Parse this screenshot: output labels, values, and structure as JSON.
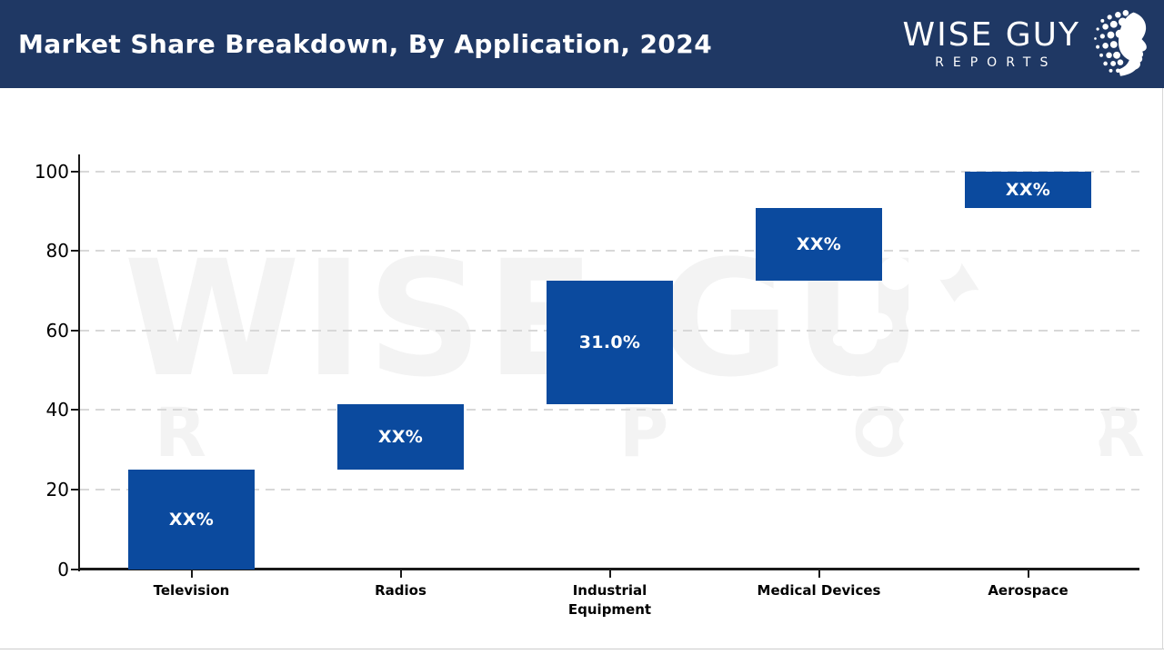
{
  "header": {
    "title": "Market Share Breakdown, By Application, 2024",
    "logo": {
      "title": "WISE GUY",
      "subtitle": "REPORTS",
      "icon": "wiseguy-face-icon"
    }
  },
  "watermark": {
    "line1": "WISE GUY",
    "line2": "R E P O R T S"
  },
  "colors": {
    "header_bg": "#1f3864",
    "bar": "#0b4a9e",
    "bar_label": "#ffffff",
    "axis": "#1a1a1a",
    "grid": "#d8d8d8",
    "watermark": "#f3f3f3"
  },
  "chart_data": {
    "type": "bar",
    "subtype": "waterfall",
    "title": "Market Share Breakdown, By Application, 2024",
    "xlabel": "",
    "ylabel": "",
    "ylim": [
      0,
      100
    ],
    "yticks": [
      0,
      20,
      40,
      60,
      80,
      100
    ],
    "grid": "horizontal-dashed",
    "legend": null,
    "categories": [
      "Television",
      "Radios",
      "Industrial\nEquipment",
      "Medical Devices",
      "Aerospace"
    ],
    "segments": [
      {
        "category": "Television",
        "start": 0,
        "end": 25,
        "label": "XX%"
      },
      {
        "category": "Radios",
        "start": 25,
        "end": 41.4,
        "label": "XX%"
      },
      {
        "category": "Industrial Equipment",
        "start": 41.4,
        "end": 72.4,
        "label": "31.0%",
        "value": 31.0
      },
      {
        "category": "Medical Devices",
        "start": 72.4,
        "end": 90.8,
        "label": "XX%"
      },
      {
        "category": "Aerospace",
        "start": 90.8,
        "end": 100,
        "label": "XX%"
      }
    ]
  }
}
